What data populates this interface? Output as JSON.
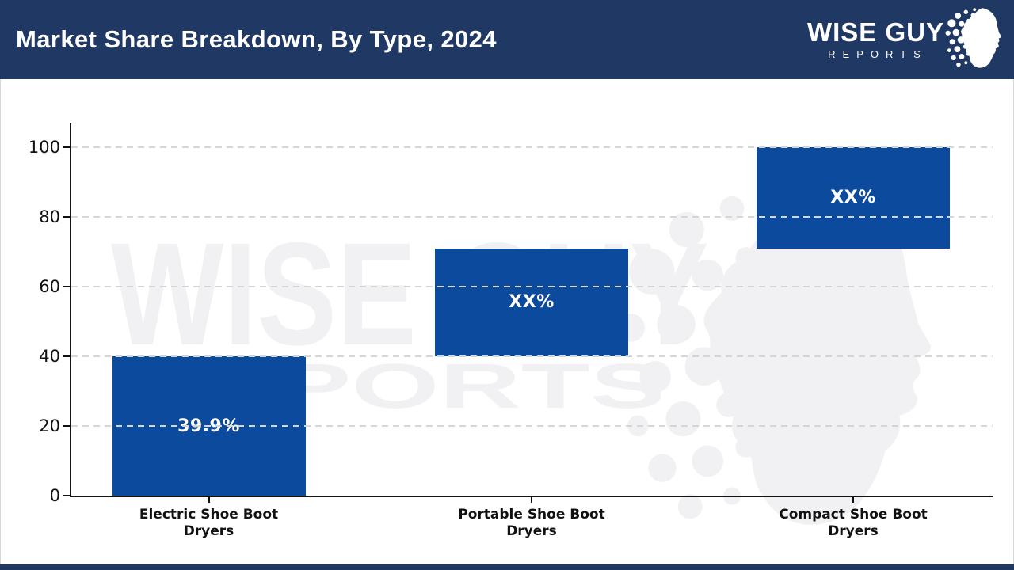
{
  "header": {
    "title": "Market Share Breakdown, By Type, 2024",
    "logo": {
      "wordmark": "WISE GUY",
      "subtext": "REPORTS"
    }
  },
  "watermark": {
    "wordmark": "WISE GUY",
    "subtext": "REPORTS"
  },
  "theme": {
    "header_bg": "#1f3864",
    "bar_color": "#0c4a9e",
    "watermark_color": "#f1f1f3",
    "grid_color": "#d6d6d6",
    "axis_color": "#111111"
  },
  "chart_data": {
    "type": "bar",
    "subtype": "stacked_percentage_waterfall",
    "title": "Market Share Breakdown, By Type, 2024",
    "categories": [
      "Electric Shoe Boot Dryers",
      "Portable Shoe Boot Dryers",
      "Compact Shoe Boot Dryers"
    ],
    "bars": [
      {
        "category_line1": "Electric Shoe Boot",
        "category_line2": "Dryers",
        "start": 0,
        "end": 40,
        "value_label": "39.9%",
        "value": 39.9
      },
      {
        "category_line1": "Portable Shoe Boot",
        "category_line2": "Dryers",
        "start": 40,
        "end": 71,
        "value_label": "XX%"
      },
      {
        "category_line1": "Compact Shoe Boot",
        "category_line2": "Dryers",
        "start": 71,
        "end": 100,
        "value_label": "XX%"
      }
    ],
    "yticks": [
      0,
      20,
      40,
      60,
      80,
      100
    ],
    "ylim": [
      0,
      107
    ],
    "xlabel": "",
    "ylabel": "",
    "grid": "horizontal-dashed",
    "legend": "none"
  }
}
